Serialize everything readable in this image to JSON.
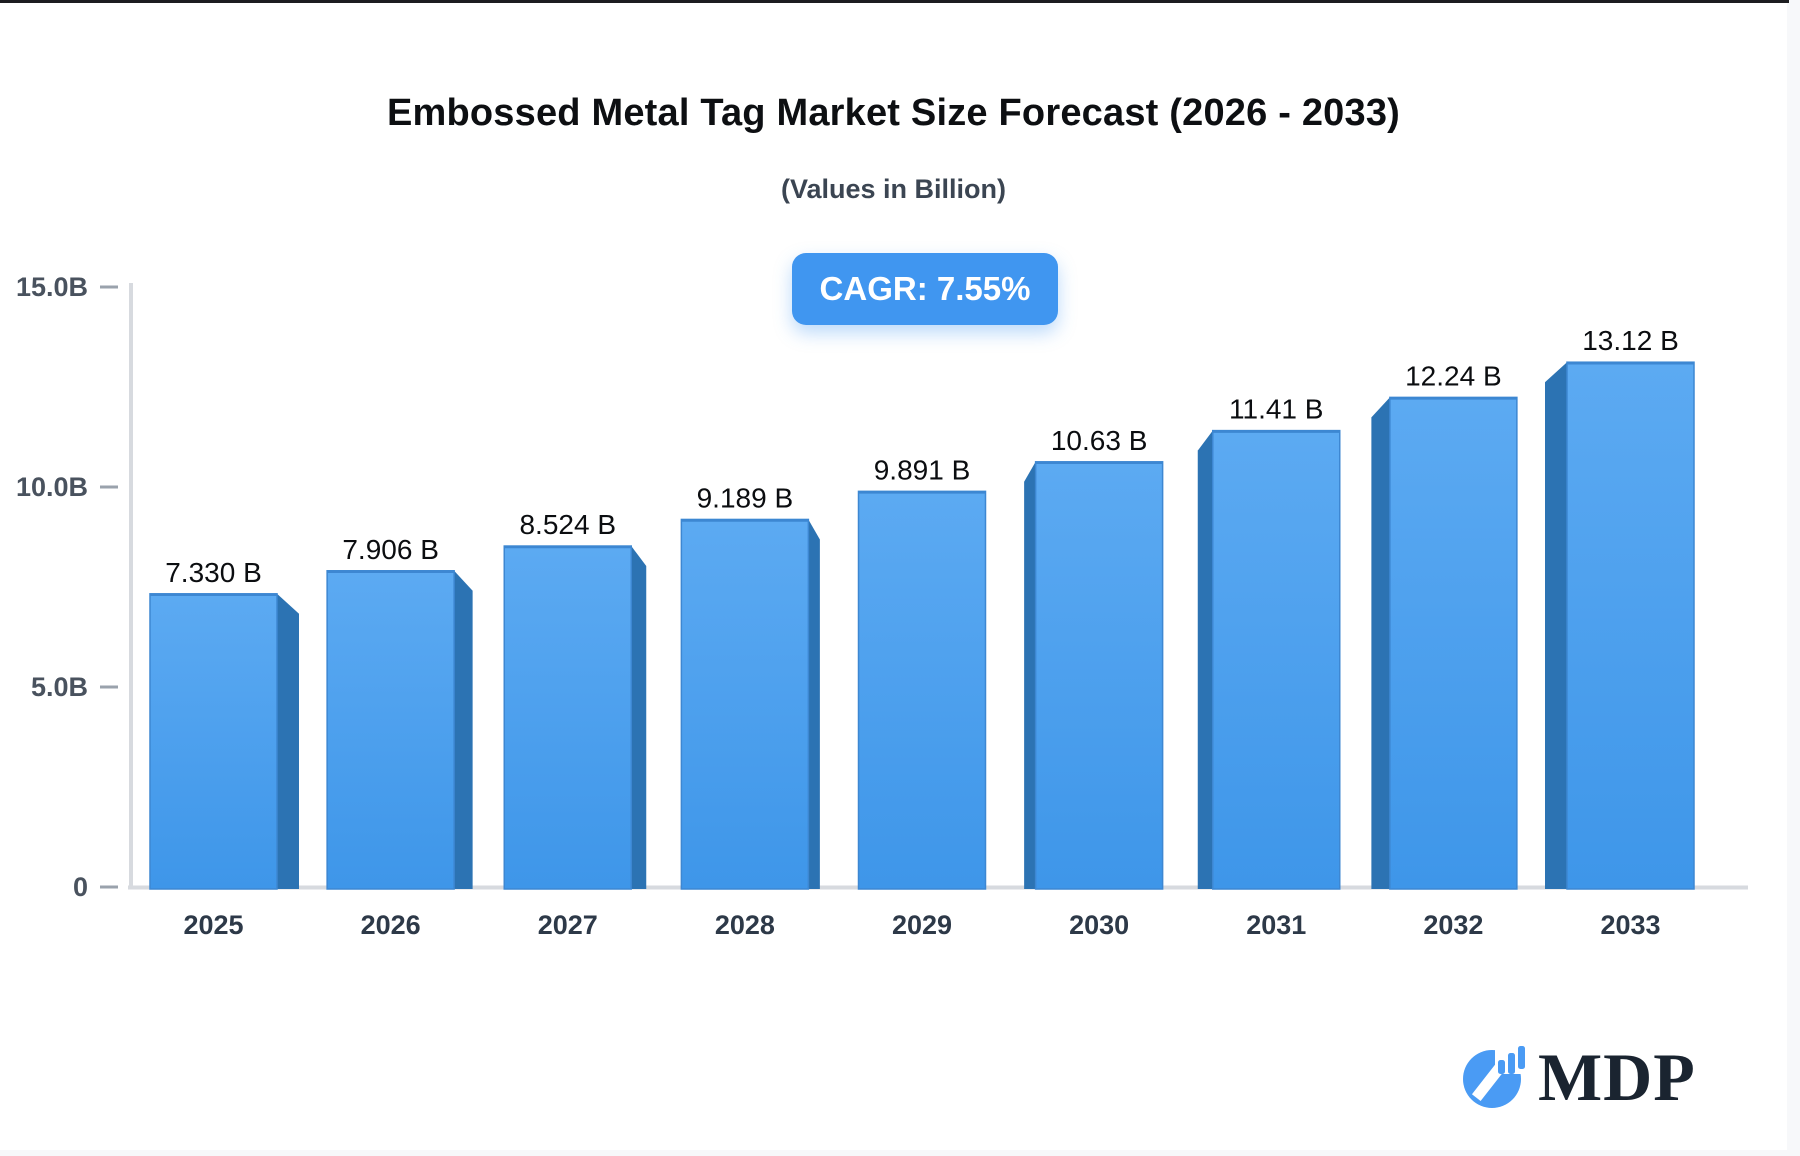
{
  "chart_data": {
    "type": "bar",
    "title": "Embossed Metal Tag Market Size Forecast (2026 - 2033)",
    "subtitle": "(Values in Billion)",
    "cagr_label": "CAGR: 7.55%",
    "categories": [
      "2025",
      "2026",
      "2027",
      "2028",
      "2029",
      "2030",
      "2031",
      "2032",
      "2033"
    ],
    "values": [
      7.33,
      7.906,
      8.524,
      9.189,
      9.891,
      10.63,
      11.41,
      12.24,
      13.12
    ],
    "value_labels": [
      "7.330 B",
      "7.906 B",
      "8.524 B",
      "9.189 B",
      "9.891 B",
      "10.63 B",
      "11.41 B",
      "12.24 B",
      "13.12 B"
    ],
    "yticks": [
      {
        "value": 0,
        "label": "0"
      },
      {
        "value": 5,
        "label": "5.0B"
      },
      {
        "value": 10,
        "label": "10.0B"
      },
      {
        "value": 15,
        "label": "15.0B"
      }
    ],
    "ylim": [
      0,
      15
    ],
    "legend": "none",
    "grid": "off",
    "colors": {
      "bar_top": "#5caaf2",
      "bar_bottom": "#3e96e9",
      "bar_edge": "#3d87d2",
      "bar_side": "#2c73b3",
      "axis": "#d7dadf",
      "tick_dash": "#9aa2ac",
      "tick_label": "#49525e",
      "year_label": "#2d3948",
      "value_label": "#0b0d10",
      "accent_badge": "#4096f0"
    }
  },
  "logo": {
    "text": "MDP"
  }
}
